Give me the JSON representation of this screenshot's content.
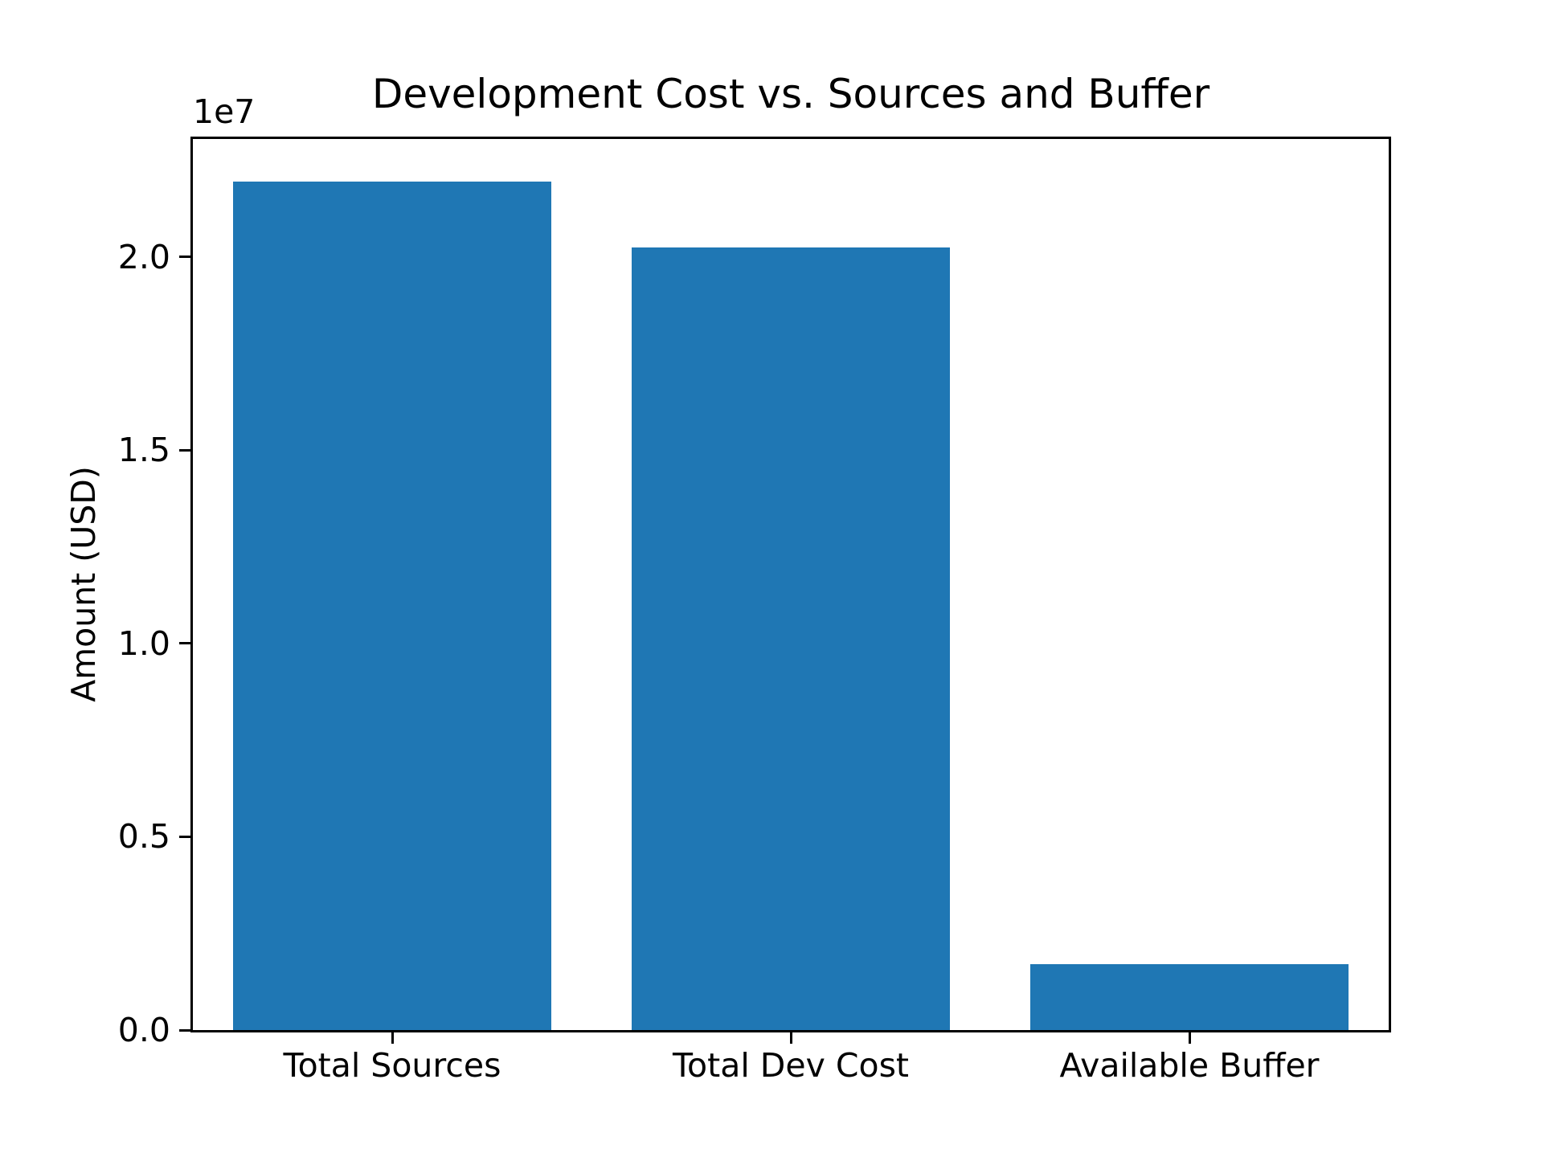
{
  "chart_data": {
    "type": "bar",
    "title": "Development Cost vs. Sources and Buffer",
    "xlabel": "",
    "ylabel": "Amount (USD)",
    "offset_text": "1e7",
    "categories": [
      "Total Sources",
      "Total Dev Cost",
      "Available Buffer"
    ],
    "values": [
      21950000,
      20250000,
      1700000
    ],
    "ylim": [
      0,
      23047500
    ],
    "yticks": [
      {
        "value": 0,
        "label": "0.0"
      },
      {
        "value": 5000000,
        "label": "0.5"
      },
      {
        "value": 10000000,
        "label": "1.0"
      },
      {
        "value": 15000000,
        "label": "1.5"
      },
      {
        "value": 20000000,
        "label": "2.0"
      }
    ],
    "bar_color": "#1f77b4",
    "bar_width_frac": 0.8,
    "grid": "off",
    "legend": "none"
  }
}
